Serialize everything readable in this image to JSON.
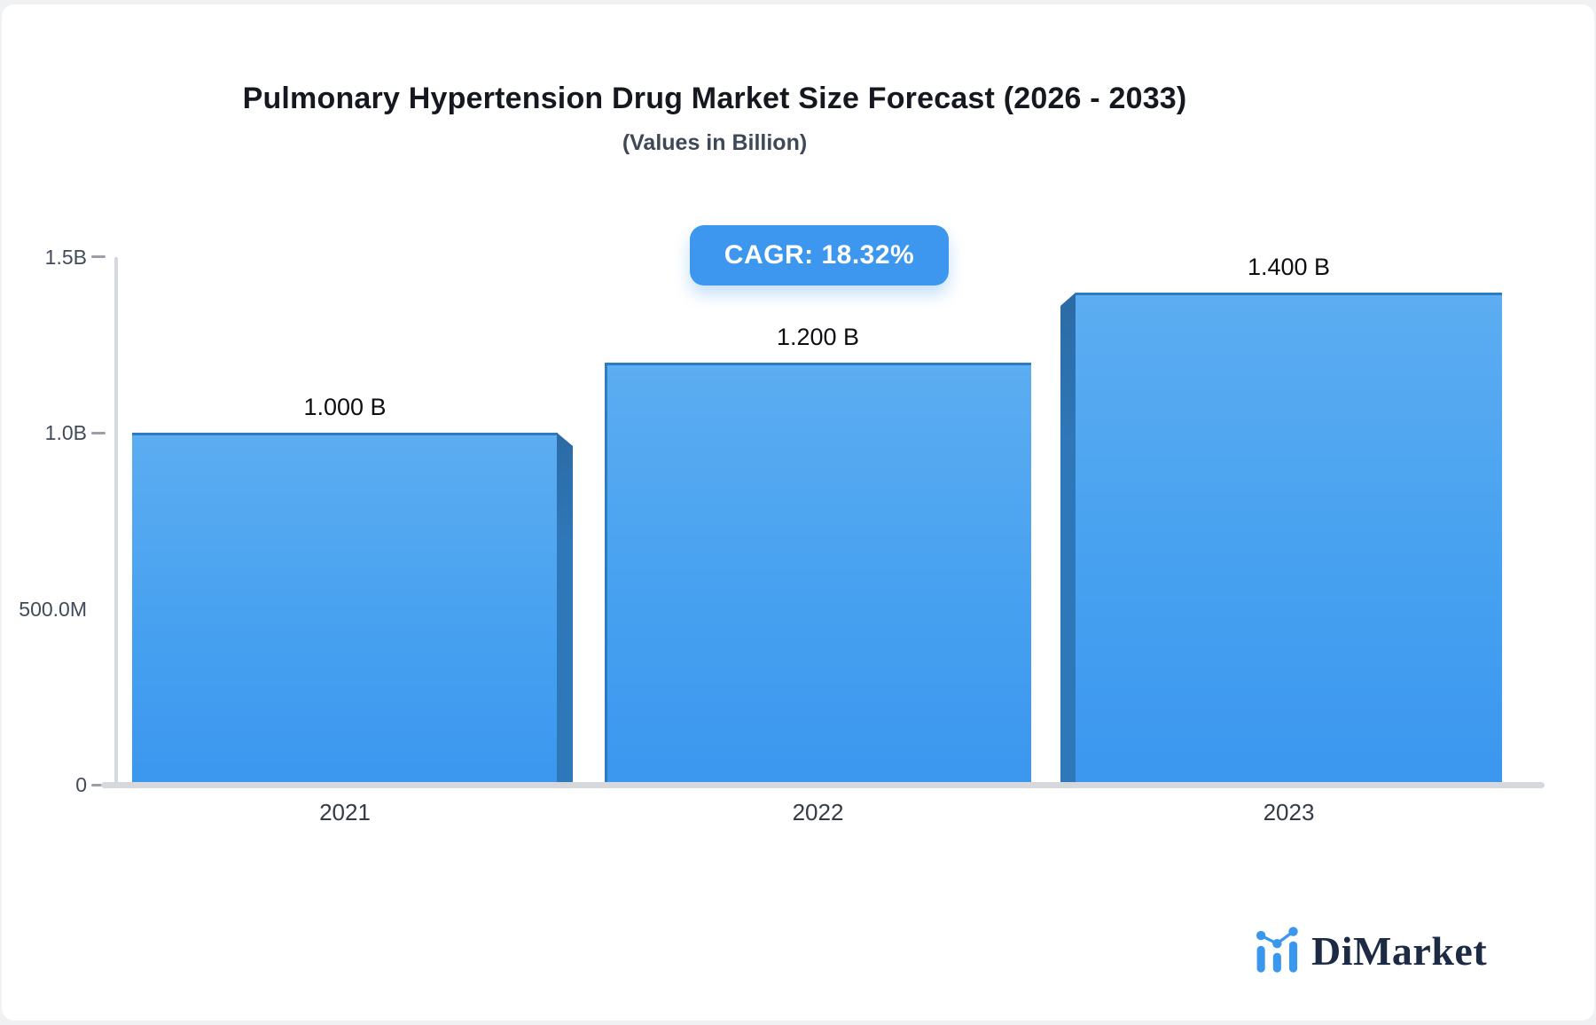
{
  "page": {
    "background": "#f0f1f3",
    "card_background": "#ffffff"
  },
  "chart_data": {
    "type": "bar",
    "title": "Pulmonary Hypertension Drug Market Size Forecast (2026 - 2033)",
    "subtitle": "(Values in Billion)",
    "categories": [
      "2021",
      "2022",
      "2023"
    ],
    "values": [
      1.0,
      1.2,
      1.4
    ],
    "value_labels": [
      "1.000 B",
      "1.200 B",
      "1.400 B"
    ],
    "xlabel": "",
    "ylabel": "",
    "ylim": [
      0,
      1.5
    ],
    "yticks": [
      {
        "label": "1.5B",
        "value": 1.5
      },
      {
        "label": "1.0B",
        "value": 1.0
      },
      {
        "label": "500.0M",
        "value": 0.5
      },
      {
        "label": "0",
        "value": 0
      }
    ],
    "grid": false,
    "legend": "none",
    "annotations": [
      {
        "text": "CAGR: 18.32%",
        "position": "top-center"
      }
    ],
    "bar_colors": {
      "fill_top": "#5cadf1",
      "fill_bottom": "#3b97ef",
      "side_3d": "#2e77b8",
      "edge": "#2a74b9"
    },
    "axis_colors": {
      "line": "#d5d8dc",
      "tick": "#99a0aa",
      "label": "#424b59"
    }
  },
  "badge": {
    "label": "CAGR: 18.32%",
    "background": "#3d97ee",
    "text_color": "#ffffff"
  },
  "footer": {
    "brand": "DiMarket",
    "icon": "bar-chart-logo-icon",
    "icon_color": "#3b97ee",
    "brand_color": "#1c2a44"
  }
}
